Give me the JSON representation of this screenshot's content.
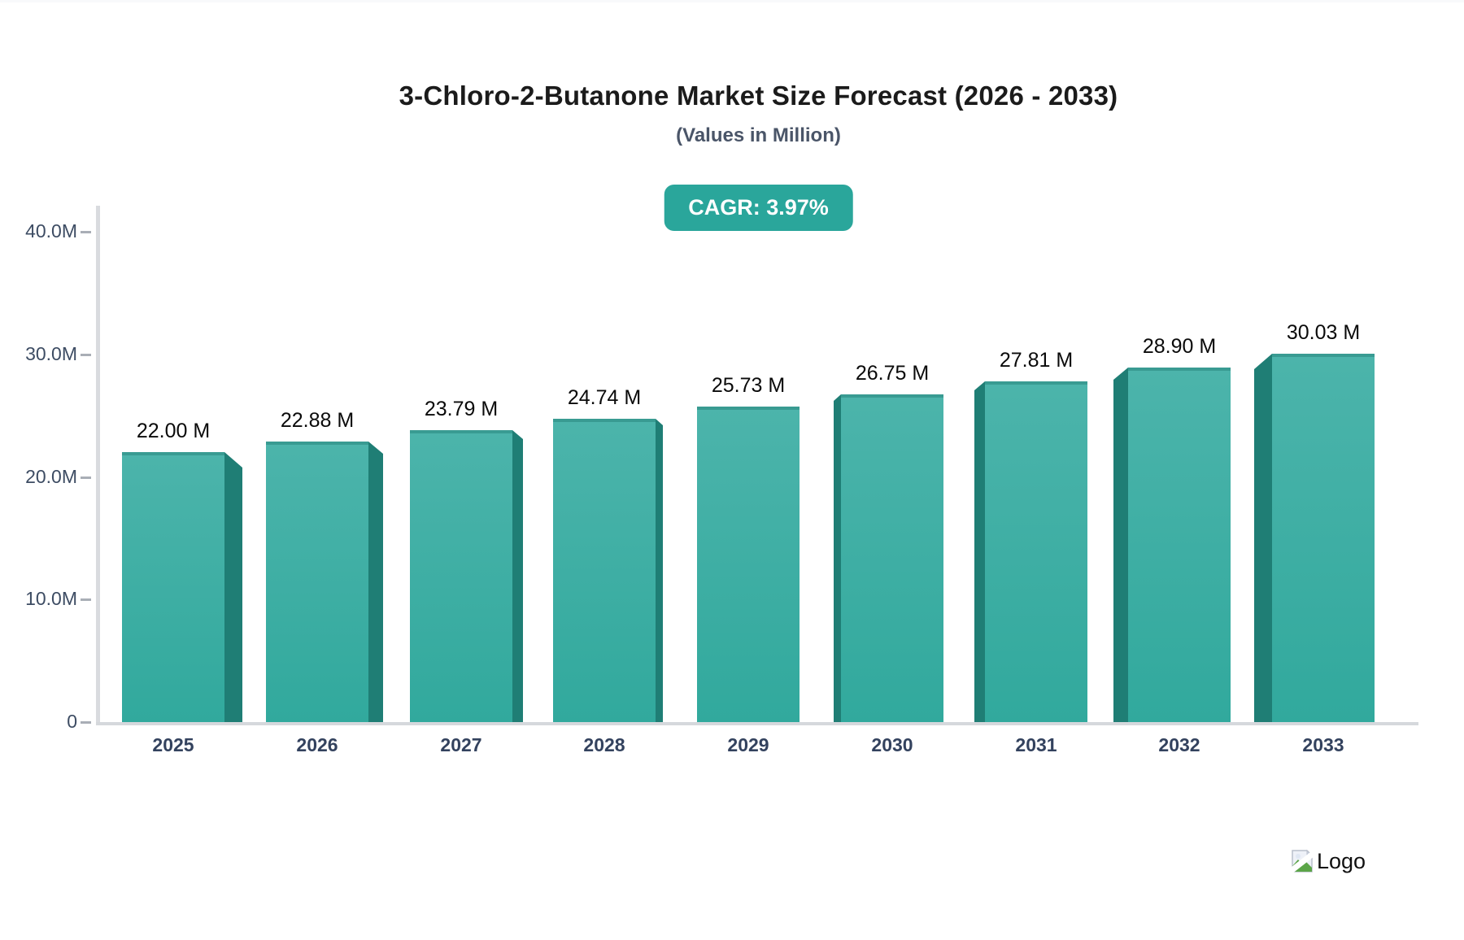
{
  "header": {
    "title": "3-Chloro-2-Butanone Market Size Forecast (2026 - 2033)",
    "subtitle": "(Values in Million)",
    "cagr_badge": "CAGR: 3.97%"
  },
  "chart_data": {
    "type": "bar",
    "title": "3-Chloro-2-Butanone Market Size Forecast (2026 - 2033)",
    "subtitle": "(Values in Million)",
    "cagr": "3.97%",
    "categories": [
      "2025",
      "2026",
      "2027",
      "2028",
      "2029",
      "2030",
      "2031",
      "2032",
      "2033"
    ],
    "values": [
      22.0,
      22.88,
      23.79,
      24.74,
      25.73,
      26.75,
      27.81,
      28.9,
      30.03
    ],
    "value_labels": [
      "22.00 M",
      "22.88 M",
      "23.79 M",
      "24.74 M",
      "25.73 M",
      "26.75 M",
      "27.81 M",
      "28.90 M",
      "30.03 M"
    ],
    "unit": "Million",
    "xlabel": "",
    "ylabel": "",
    "ylim": [
      0,
      40
    ],
    "grid": false,
    "legend_position": "none",
    "y_axis_ticks": [
      {
        "label": "40.0M",
        "value": 40
      },
      {
        "label": "30.0M",
        "value": 30
      },
      {
        "label": "20.0M",
        "value": 20
      },
      {
        "label": "10.0M",
        "value": 10
      },
      {
        "label": "0",
        "value": 0
      }
    ],
    "colors": {
      "bar_face_top": "#4cb4ab",
      "bar_face_bottom": "#31a99d",
      "bar_side": "#1f7e75",
      "accent_badge": "#2aa69b",
      "axis_line": "#d5d8dc",
      "tick_label": "#3d4c63",
      "category_label": "#33425e"
    }
  },
  "footer": {
    "logo_alt": "Logo"
  }
}
